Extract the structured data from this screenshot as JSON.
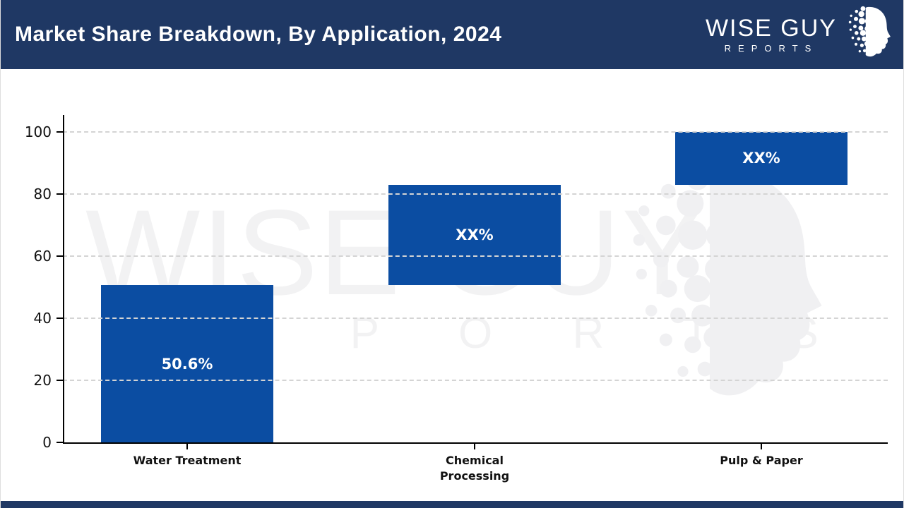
{
  "header": {
    "title": "Market Share Breakdown, By Application, 2024",
    "brand": {
      "line1": "WISE GUY",
      "line2": "REPORTS"
    }
  },
  "watermark": {
    "line1": "WISE GUY",
    "line2": "R E P O R T S"
  },
  "colors": {
    "header_bg": "#1f3864",
    "footer_bg": "#1f3864",
    "bar": "#0b4da2",
    "gridline": "#d4d4d4",
    "axis": "#000000",
    "bar_label": "#ffffff",
    "watermark": "#f2f2f3"
  },
  "chart_data": {
    "type": "bar",
    "subtype": "waterfall",
    "title": "Market Share Breakdown, By Application, 2024",
    "categories": [
      "Water Treatment",
      "Chemical Processing",
      "Pulp & Paper"
    ],
    "tick_labels": [
      "Water Treatment",
      "Chemical\nProcessing",
      "Pulp & Paper"
    ],
    "segments": [
      {
        "category": "Water Treatment",
        "start": 0,
        "end": 50.6,
        "value": 50.6,
        "label": "50.6%"
      },
      {
        "category": "Chemical Processing",
        "start": 50.6,
        "end": 83,
        "value": 32.4,
        "label": "XX%"
      },
      {
        "category": "Pulp & Paper",
        "start": 83,
        "end": 100,
        "value": 17,
        "label": "XX%"
      }
    ],
    "xlabel": "",
    "ylabel": "",
    "ylim": [
      0,
      100
    ],
    "yticks": [
      0,
      20,
      40,
      60,
      80,
      100
    ],
    "grid": "dashed-horizontal",
    "legend": "none"
  }
}
